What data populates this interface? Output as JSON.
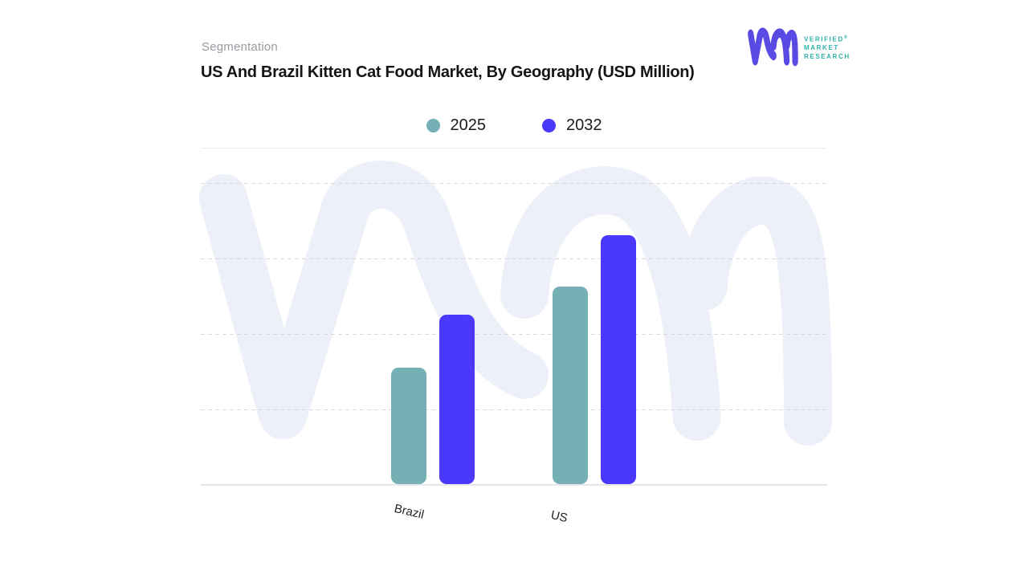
{
  "header": {
    "eyebrow": "Segmentation",
    "title": "US And Brazil Kitten Cat Food Market, By Geography (USD Million)"
  },
  "brand": {
    "monogram": "vmr-monogram",
    "monogram_color": "#5a4ae4",
    "watermark_color": "#eef0f9",
    "text_color": "#2eb3a8",
    "line1": "VERIFIED",
    "registered_mark": "®",
    "line2": "MARKET",
    "line3": "RESEARCH"
  },
  "chart_data": {
    "type": "bar",
    "title": "US And Brazil Kitten Cat Food Market, By Geography (USD Million)",
    "categories": [
      "Brazil",
      "US"
    ],
    "series": [
      {
        "name": "2025",
        "color": "#74b0b4",
        "values_pct_of_plot": [
          38.4,
          65.1
        ]
      },
      {
        "name": "2032",
        "color": "#4a38fb",
        "values_pct_of_plot": [
          55.8,
          82.0
        ]
      }
    ],
    "xlabel": "",
    "ylabel": "",
    "y_axis_ticks": "none shown (unlabeled axis); values are estimated bar heights as percent of plot height",
    "grid": "4 dashed horizontal gridlines, solid bottom axis line",
    "legend_position": "top-center",
    "x_label_rotation_deg": 13
  }
}
